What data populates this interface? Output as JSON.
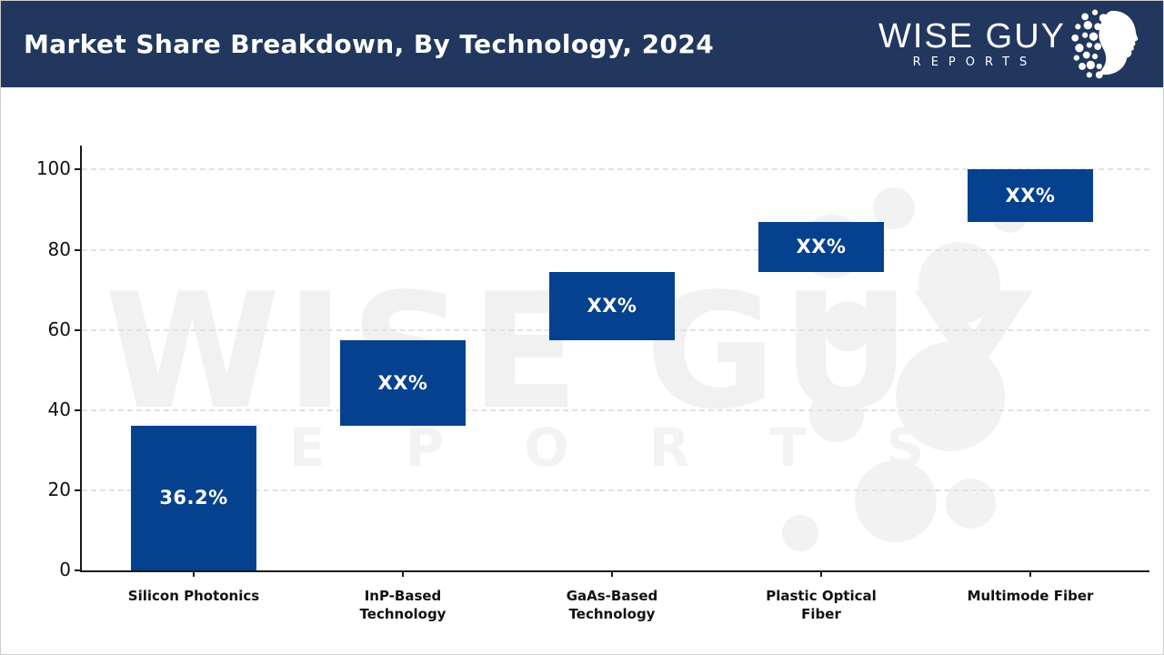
{
  "header": {
    "title": "Market Share Breakdown, By Technology, 2024",
    "logo": {
      "line1": "WISE GUY",
      "line2": "REPORTS"
    }
  },
  "watermark": {
    "line1": "WISE GUY",
    "line2": "REPORTS"
  },
  "colors": {
    "header_background": "#21375e",
    "bar": "#05418f",
    "bar_label": "#ffffff",
    "gridline": "#e2e2e2",
    "axis": "#1a1a1a",
    "watermark": "#f1f1f1"
  },
  "chart_data": {
    "type": "bar",
    "subtype": "waterfall",
    "title": "Market Share Breakdown, By Technology, 2024",
    "categories": [
      "Silicon Photonics",
      "InP-Based\nTechnology",
      "GaAs-Based\nTechnology",
      "Plastic Optical\nFiber",
      "Multimode Fiber"
    ],
    "series": [
      {
        "name": "Market share (%)",
        "segments": [
          {
            "category": "Silicon Photonics",
            "start": 0,
            "end": 36.2,
            "value": 36.2,
            "label": "36.2%"
          },
          {
            "category": "InP-Based Technology",
            "start": 36.2,
            "end": 57.5,
            "value": 21.3,
            "label": "XX%"
          },
          {
            "category": "GaAs-Based Technology",
            "start": 57.5,
            "end": 74.5,
            "value": 17.0,
            "label": "XX%"
          },
          {
            "category": "Plastic Optical Fiber",
            "start": 74.5,
            "end": 87.0,
            "value": 12.5,
            "label": "XX%"
          },
          {
            "category": "Multimode Fiber",
            "start": 87.0,
            "end": 100.0,
            "value": 13.0,
            "label": "XX%"
          }
        ]
      }
    ],
    "xlabel": "",
    "ylabel": "",
    "ylim": [
      0,
      106
    ],
    "yticks": [
      0,
      20,
      40,
      60,
      80,
      100
    ],
    "grid": "horizontal-dashed",
    "legend": "none"
  }
}
